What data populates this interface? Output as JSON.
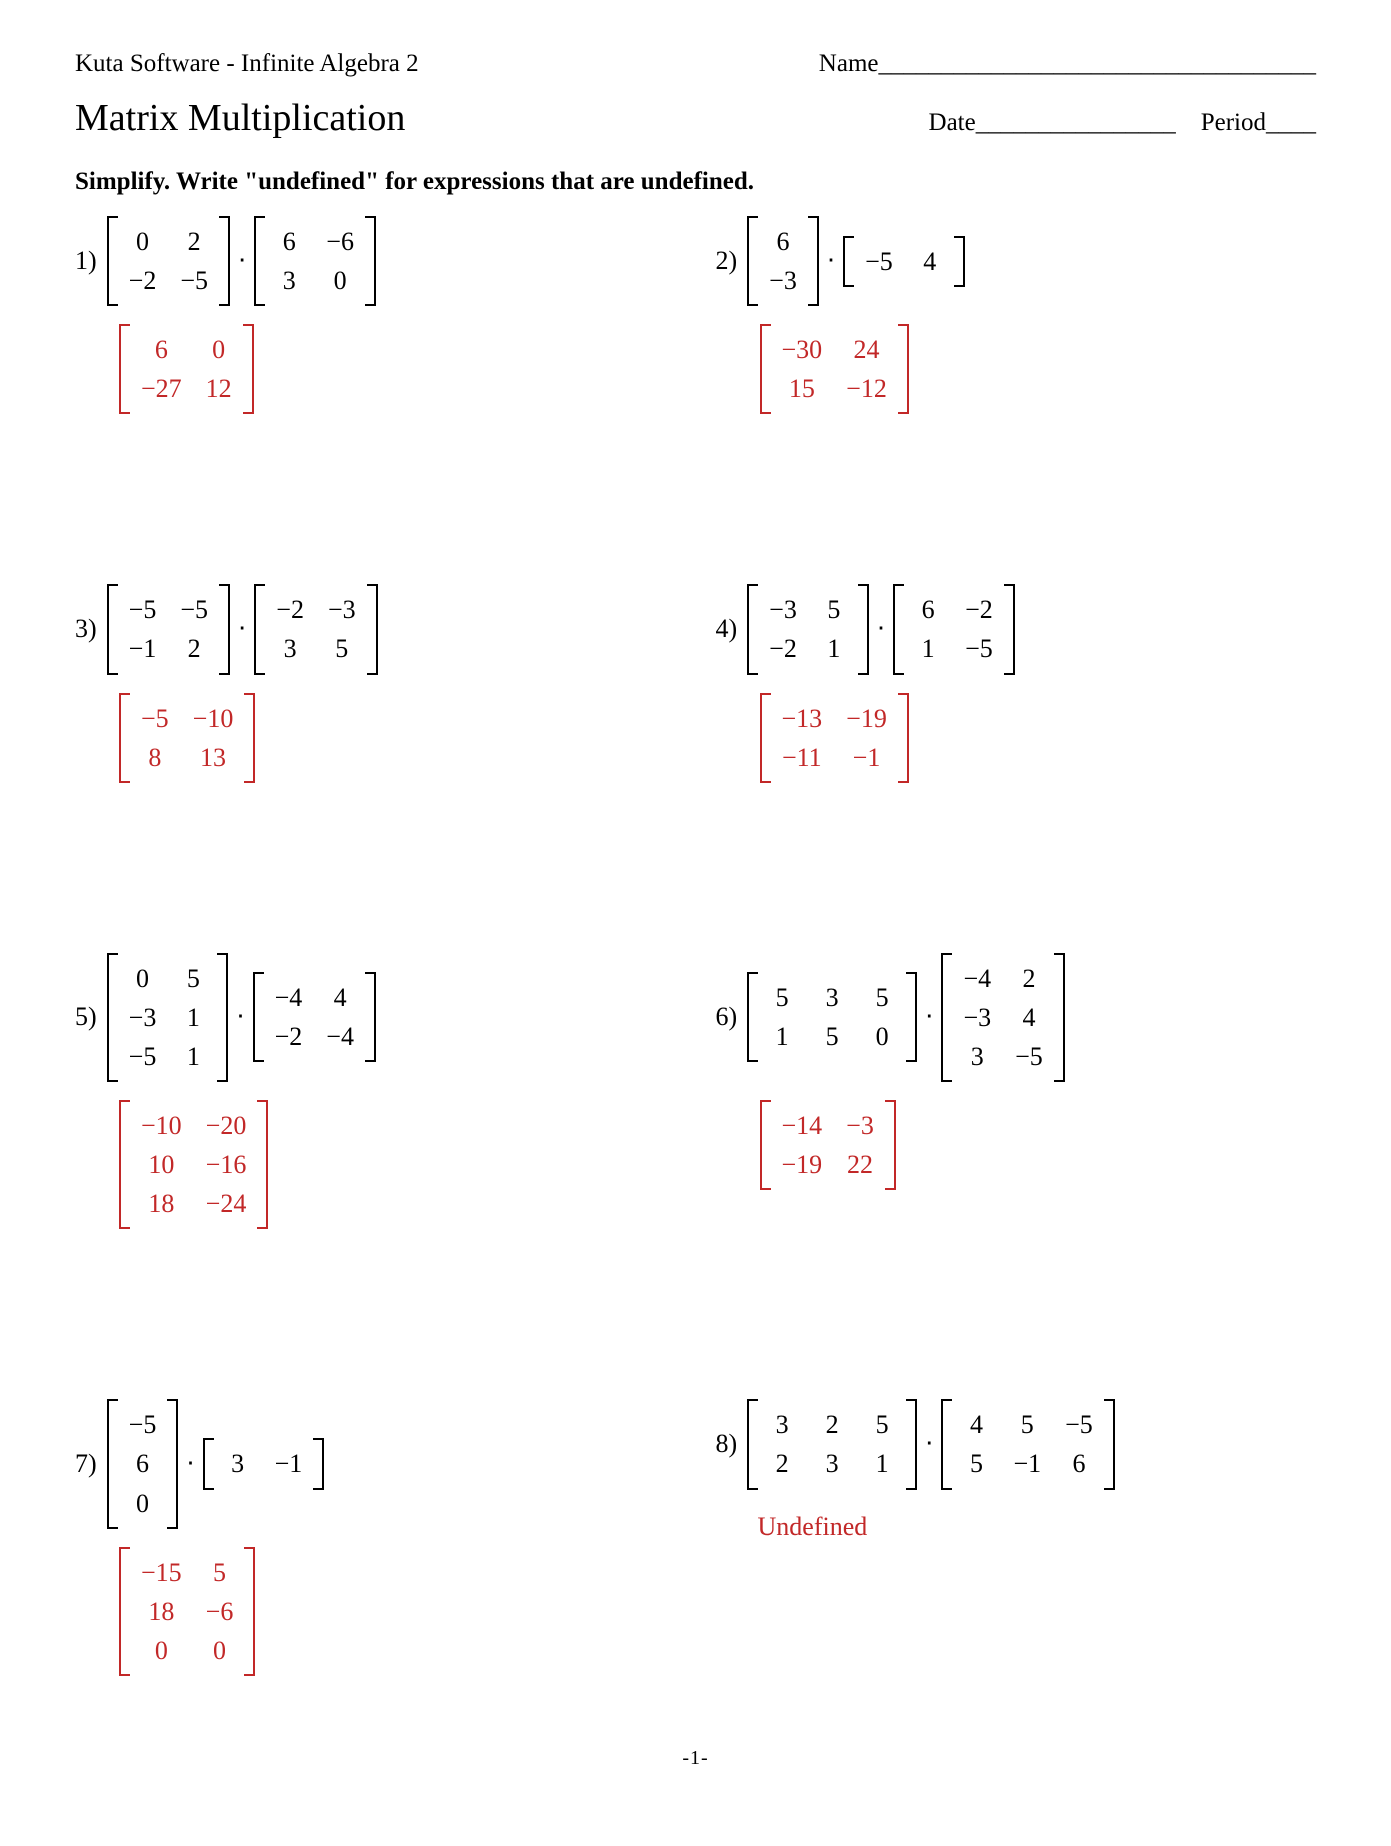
{
  "header": {
    "software_line": "Kuta Software - Infinite Algebra 2",
    "name_label": "Name___________________________________",
    "title": "Matrix Multiplication",
    "date_label": "Date________________",
    "period_label": "Period____"
  },
  "instructions": "Simplify.  Write \"undefined\" for expressions that are undefined.",
  "colors": {
    "text": "#000000",
    "answer": "#c22828",
    "background": "#ffffff"
  },
  "typography": {
    "body_fontsize": 26,
    "title_fontsize": 38,
    "header_fontsize": 25,
    "font_family": "Times New Roman"
  },
  "problems": [
    {
      "num": "1)",
      "A": [
        [
          "0",
          "2"
        ],
        [
          "−2",
          "−5"
        ]
      ],
      "B": [
        [
          "6",
          "−6"
        ],
        [
          "3",
          "0"
        ]
      ],
      "answer": [
        [
          "6",
          "0"
        ],
        [
          "−27",
          "12"
        ]
      ]
    },
    {
      "num": "2)",
      "A": [
        [
          "6"
        ],
        [
          "−3"
        ]
      ],
      "B": [
        [
          "−5",
          "4"
        ]
      ],
      "answer": [
        [
          "−30",
          "24"
        ],
        [
          "15",
          "−12"
        ]
      ]
    },
    {
      "num": "3)",
      "A": [
        [
          "−5",
          "−5"
        ],
        [
          "−1",
          "2"
        ]
      ],
      "B": [
        [
          "−2",
          "−3"
        ],
        [
          "3",
          "5"
        ]
      ],
      "answer": [
        [
          "−5",
          "−10"
        ],
        [
          "8",
          "13"
        ]
      ]
    },
    {
      "num": "4)",
      "A": [
        [
          "−3",
          "5"
        ],
        [
          "−2",
          "1"
        ]
      ],
      "B": [
        [
          "6",
          "−2"
        ],
        [
          "1",
          "−5"
        ]
      ],
      "answer": [
        [
          "−13",
          "−19"
        ],
        [
          "−11",
          "−1"
        ]
      ]
    },
    {
      "num": "5)",
      "A": [
        [
          "0",
          "5"
        ],
        [
          "−3",
          "1"
        ],
        [
          "−5",
          "1"
        ]
      ],
      "B": [
        [
          "−4",
          "4"
        ],
        [
          "−2",
          "−4"
        ]
      ],
      "answer": [
        [
          "−10",
          "−20"
        ],
        [
          "10",
          "−16"
        ],
        [
          "18",
          "−24"
        ]
      ]
    },
    {
      "num": "6)",
      "A": [
        [
          "5",
          "3",
          "5"
        ],
        [
          "1",
          "5",
          "0"
        ]
      ],
      "B": [
        [
          "−4",
          "2"
        ],
        [
          "−3",
          "4"
        ],
        [
          "3",
          "−5"
        ]
      ],
      "answer": [
        [
          "−14",
          "−3"
        ],
        [
          "−19",
          "22"
        ]
      ]
    },
    {
      "num": "7)",
      "A": [
        [
          "−5"
        ],
        [
          "6"
        ],
        [
          "0"
        ]
      ],
      "B": [
        [
          "3",
          "−1"
        ]
      ],
      "answer": [
        [
          "−15",
          "5"
        ],
        [
          "18",
          "−6"
        ],
        [
          "0",
          "0"
        ]
      ]
    },
    {
      "num": "8)",
      "A": [
        [
          "3",
          "2",
          "5"
        ],
        [
          "2",
          "3",
          "1"
        ]
      ],
      "B": [
        [
          "4",
          "5",
          "−5"
        ],
        [
          "5",
          "−1",
          "6"
        ]
      ],
      "answer_text": "Undefined"
    }
  ],
  "footer": "-1-"
}
